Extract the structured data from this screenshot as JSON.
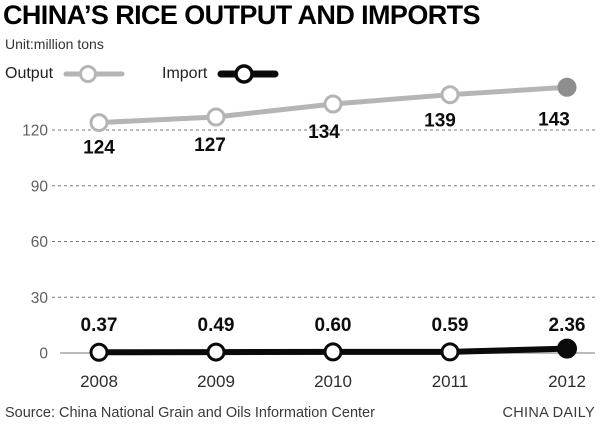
{
  "header": {
    "title": "CHINA’S RICE OUTPUT AND IMPORTS",
    "unit_label": "Unit:million tons"
  },
  "legend": {
    "output_label": "Output",
    "import_label": "Import"
  },
  "chart_data": {
    "type": "line",
    "categories": [
      "2008",
      "2009",
      "2010",
      "2011",
      "2012"
    ],
    "series": [
      {
        "name": "Output",
        "values": [
          124,
          127,
          134,
          139,
          143
        ],
        "labels": [
          "124",
          "127",
          "134",
          "139",
          "143"
        ],
        "color": "#b5b5b5"
      },
      {
        "name": "Import",
        "values": [
          0.37,
          0.49,
          0.6,
          0.59,
          2.36
        ],
        "labels": [
          "0.37",
          "0.49",
          "0.60",
          "0.59",
          "2.36"
        ],
        "color": "#0a0a0a"
      }
    ],
    "ylabel": "million tons",
    "yticks": [
      0,
      30,
      60,
      90,
      120
    ],
    "ylim": [
      0,
      150
    ],
    "grid": "horizontal-dashed",
    "legend_position": "top-left"
  },
  "footer": {
    "source": "Source: China National Grain and Oils Information Center",
    "credit": "CHINA DAILY"
  },
  "colors": {
    "output_line": "#b5b5b5",
    "output_last_point": "#8e8e8e",
    "import_line": "#0a0a0a",
    "grid": "#7a7a7a",
    "axis": "#a6a6a6"
  }
}
